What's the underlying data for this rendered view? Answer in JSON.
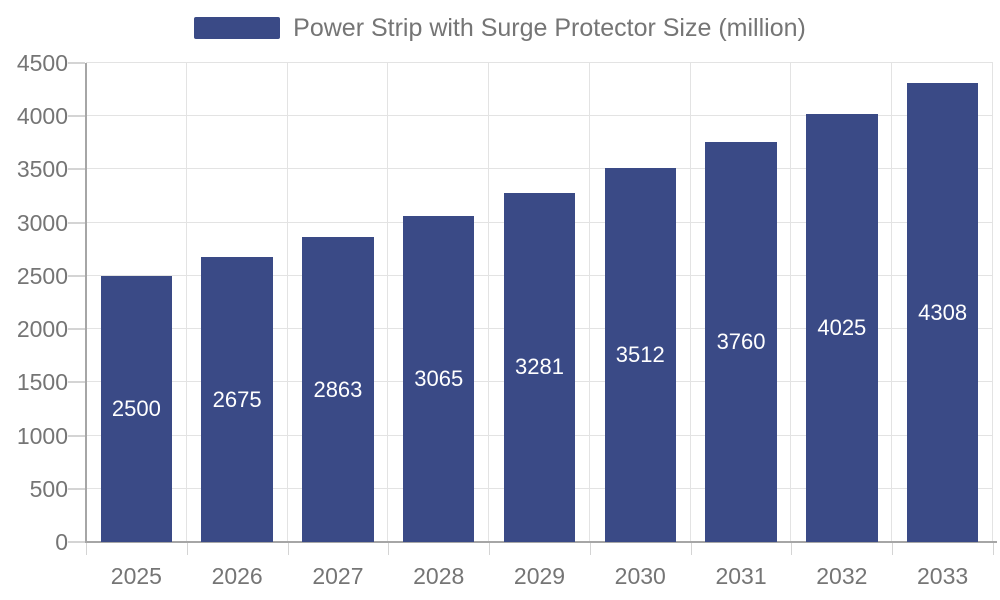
{
  "legend": {
    "label": "Power Strip with Surge Protector Size (million)"
  },
  "chart_data": {
    "type": "bar",
    "title": "Power Strip with Surge Protector Size (million)",
    "categories": [
      "2025",
      "2026",
      "2027",
      "2028",
      "2029",
      "2030",
      "2031",
      "2032",
      "2033"
    ],
    "series": [
      {
        "name": "Power Strip with Surge Protector Size (million)",
        "values": [
          2500,
          2675,
          2863,
          3065,
          3281,
          3512,
          3760,
          4025,
          4308
        ]
      }
    ],
    "xlabel": "",
    "ylabel": "",
    "ylim": [
      0,
      4500
    ],
    "ytick_step": 500,
    "yticks": [
      0,
      500,
      1000,
      1500,
      2000,
      2500,
      3000,
      3500,
      4000,
      4500
    ],
    "grid": true,
    "legend_position": "top",
    "value_label_position": "inside-center"
  },
  "colors": {
    "bar": "#3A4A86",
    "bar_label": "#FFFFFF",
    "axis_text": "#757575",
    "legend_text": "#757575",
    "axis_line": "#A6A6A6",
    "gridline": "#E3E3E3",
    "tick": "#D4D4D4",
    "background": "#FFFFFF"
  }
}
